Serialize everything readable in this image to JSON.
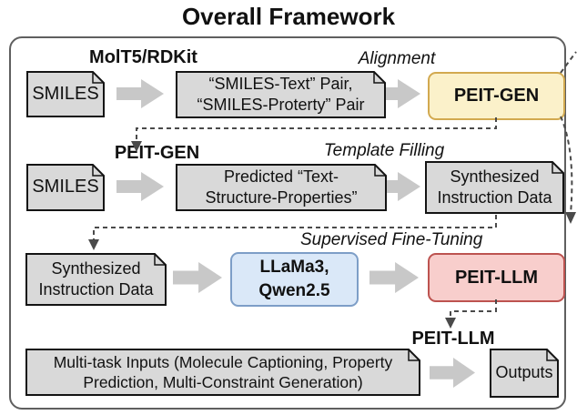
{
  "title": "Overall Framework",
  "colors": {
    "doc_fill": "#d9d9d9",
    "doc_stroke": "#141414",
    "gen_fill": "#fbf1ca",
    "gen_stroke": "#d2a94f",
    "llm_blue_fill": "#dae8f8",
    "llm_blue_stroke": "#7d9ec7",
    "llm_red_fill": "#f8cecc",
    "llm_red_stroke": "#bd5350",
    "arrow_fill": "#c8c8c8",
    "dash_color": "#4a4a4a",
    "frame_stroke": "#5f5f5f"
  },
  "flow": {
    "row1": {
      "tool_label": "MolT5/RDKit",
      "stage_label": "Alignment",
      "input_doc": "SMILES",
      "pair_doc_lines": [
        "“SMILES-Text” Pair,",
        "“SMILES-Proterty” Pair"
      ],
      "model_box": "PEIT-GEN"
    },
    "row2": {
      "tool_label": "PEIT-GEN",
      "stage_label": "Template Filling",
      "input_doc": "SMILES",
      "predicted_doc_lines": [
        "Predicted “Text-",
        "Structure-Properties”"
      ],
      "output_doc_lines": [
        "Synthesized",
        "Instruction Data"
      ]
    },
    "row3": {
      "stage_label": "Supervised Fine-Tuning",
      "input_doc_lines": [
        "Synthesized",
        "Instruction Data"
      ],
      "model_box_lines": [
        "LLaMa3,",
        "Qwen2.5"
      ],
      "output_box": "PEIT-LLM"
    },
    "row4": {
      "tool_label": "PEIT-LLM",
      "input_doc_lines": [
        "Multi-task Inputs (Molecule Captioning, Property",
        "Prediction, Multi-Constraint Generation)"
      ],
      "output_doc": "Outputs"
    }
  }
}
